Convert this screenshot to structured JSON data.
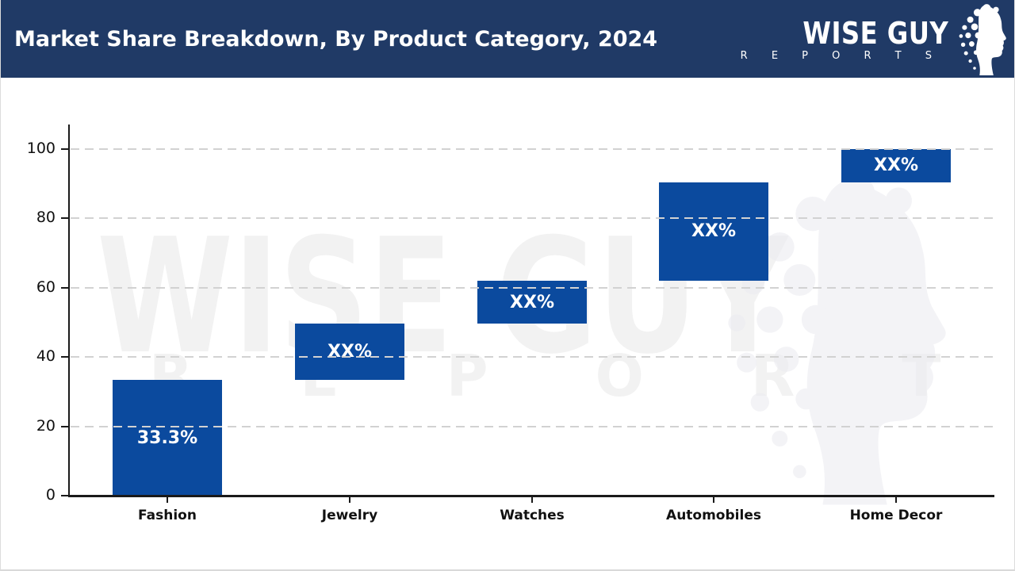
{
  "header": {
    "title": "Market Share Breakdown, By Product Category, 2024",
    "logo": {
      "wordmark": "WISE GUY",
      "subtext": "R E P O R T S"
    }
  },
  "watermark": {
    "wordmark": "WISE GUY",
    "subtext": "R E P O R T S"
  },
  "chart_data": {
    "type": "bar",
    "subtype": "floating-waterfall",
    "title": "Market Share Breakdown, By Product Category, 2024",
    "categories": [
      "Fashion",
      "Jewelry",
      "Watches",
      "Automobiles",
      "Home Decor"
    ],
    "segments": [
      {
        "category": "Fashion",
        "start": 0,
        "end": 33.3,
        "label": "33.3%"
      },
      {
        "category": "Jewelry",
        "start": 33.3,
        "end": 49.5,
        "label": "XX%"
      },
      {
        "category": "Watches",
        "start": 49.5,
        "end": 62.0,
        "label": "XX%"
      },
      {
        "category": "Automobiles",
        "start": 62.0,
        "end": 90.3,
        "label": "XX%"
      },
      {
        "category": "Home Decor",
        "start": 90.3,
        "end": 100.0,
        "label": "XX%"
      }
    ],
    "y_ticks": [
      0,
      20,
      40,
      60,
      80,
      100
    ],
    "ylim": [
      0,
      107
    ],
    "xlabel": "",
    "ylabel": "",
    "grid": "horizontal-dashed",
    "legend": "none",
    "bar_color": "#0b4a9e",
    "bar_label_color": "#ffffff"
  },
  "colors": {
    "header_bg": "#203a66",
    "bar": "#0b4a9e",
    "grid": "#d2d2d2",
    "axis": "#1a1a1a",
    "watermark": "#f2f2f2"
  }
}
